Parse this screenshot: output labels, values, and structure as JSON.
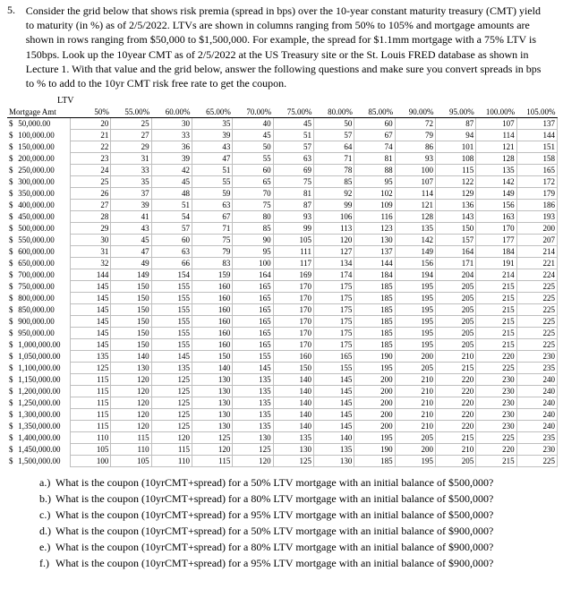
{
  "question_number": "5.",
  "question_text": "Consider the grid below that shows risk premia (spread in bps) over the 10-year constant maturity treasury (CMT) yield to maturity (in %) as of 2/5/2022. LTVs are shown in columns ranging from 50% to 105% and mortgage amounts are shown in rows ranging from $50,000 to $1,500,000. For example, the spread for $1.1mm mortgage with a 75% LTV is 150bps. Look up the 10year CMT as of 2/5/2022 at the US Treasury site or the St. Louis FRED database as shown in Lecture 1. With that value and the grid below, answer the following questions and make sure you convert spreads in bps to % to add to the 10yr CMT risk free rate to get the coupon.",
  "ltv_label": "LTV",
  "table": {
    "mortgage_header": "Mortgage Amt",
    "columns": [
      "50%",
      "55.00%",
      "60.00%",
      "65.00%",
      "70.00%",
      "75.00%",
      "80.00%",
      "85.00%",
      "90.00%",
      "95.00%",
      "100.00%",
      "105.00%"
    ],
    "rows": [
      {
        "amt": "50,000.00",
        "vals": [
          20,
          25,
          30,
          35,
          40,
          45,
          50,
          60,
          72,
          87,
          107,
          137
        ]
      },
      {
        "amt": "100,000.00",
        "vals": [
          21,
          27,
          33,
          39,
          45,
          51,
          57,
          67,
          79,
          94,
          114,
          144
        ]
      },
      {
        "amt": "150,000.00",
        "vals": [
          22,
          29,
          36,
          43,
          50,
          57,
          64,
          74,
          86,
          101,
          121,
          151
        ]
      },
      {
        "amt": "200,000.00",
        "vals": [
          23,
          31,
          39,
          47,
          55,
          63,
          71,
          81,
          93,
          108,
          128,
          158
        ]
      },
      {
        "amt": "250,000.00",
        "vals": [
          24,
          33,
          42,
          51,
          60,
          69,
          78,
          88,
          100,
          115,
          135,
          165
        ]
      },
      {
        "amt": "300,000.00",
        "vals": [
          25,
          35,
          45,
          55,
          65,
          75,
          85,
          95,
          107,
          122,
          142,
          172
        ]
      },
      {
        "amt": "350,000.00",
        "vals": [
          26,
          37,
          48,
          59,
          70,
          81,
          92,
          102,
          114,
          129,
          149,
          179
        ]
      },
      {
        "amt": "400,000.00",
        "vals": [
          27,
          39,
          51,
          63,
          75,
          87,
          99,
          109,
          121,
          136,
          156,
          186
        ]
      },
      {
        "amt": "450,000.00",
        "vals": [
          28,
          41,
          54,
          67,
          80,
          93,
          106,
          116,
          128,
          143,
          163,
          193
        ]
      },
      {
        "amt": "500,000.00",
        "vals": [
          29,
          43,
          57,
          71,
          85,
          99,
          113,
          123,
          135,
          150,
          170,
          200
        ]
      },
      {
        "amt": "550,000.00",
        "vals": [
          30,
          45,
          60,
          75,
          90,
          105,
          120,
          130,
          142,
          157,
          177,
          207
        ]
      },
      {
        "amt": "600,000.00",
        "vals": [
          31,
          47,
          63,
          79,
          95,
          111,
          127,
          137,
          149,
          164,
          184,
          214
        ]
      },
      {
        "amt": "650,000.00",
        "vals": [
          32,
          49,
          66,
          83,
          100,
          117,
          134,
          144,
          156,
          171,
          191,
          221
        ]
      },
      {
        "amt": "700,000.00",
        "vals": [
          144,
          149,
          154,
          159,
          164,
          169,
          174,
          184,
          194,
          204,
          214,
          224
        ]
      },
      {
        "amt": "750,000.00",
        "vals": [
          145,
          150,
          155,
          160,
          165,
          170,
          175,
          185,
          195,
          205,
          215,
          225
        ]
      },
      {
        "amt": "800,000.00",
        "vals": [
          145,
          150,
          155,
          160,
          165,
          170,
          175,
          185,
          195,
          205,
          215,
          225
        ]
      },
      {
        "amt": "850,000.00",
        "vals": [
          145,
          150,
          155,
          160,
          165,
          170,
          175,
          185,
          195,
          205,
          215,
          225
        ]
      },
      {
        "amt": "900,000.00",
        "vals": [
          145,
          150,
          155,
          160,
          165,
          170,
          175,
          185,
          195,
          205,
          215,
          225
        ]
      },
      {
        "amt": "950,000.00",
        "vals": [
          145,
          150,
          155,
          160,
          165,
          170,
          175,
          185,
          195,
          205,
          215,
          225
        ]
      },
      {
        "amt": "1,000,000.00",
        "vals": [
          145,
          150,
          155,
          160,
          165,
          170,
          175,
          185,
          195,
          205,
          215,
          225
        ]
      },
      {
        "amt": "1,050,000.00",
        "vals": [
          135,
          140,
          145,
          150,
          155,
          160,
          165,
          190,
          200,
          210,
          220,
          230
        ]
      },
      {
        "amt": "1,100,000.00",
        "vals": [
          125,
          130,
          135,
          140,
          145,
          150,
          155,
          195,
          205,
          215,
          225,
          235
        ]
      },
      {
        "amt": "1,150,000.00",
        "vals": [
          115,
          120,
          125,
          130,
          135,
          140,
          145,
          200,
          210,
          220,
          230,
          240
        ]
      },
      {
        "amt": "1,200,000.00",
        "vals": [
          115,
          120,
          125,
          130,
          135,
          140,
          145,
          200,
          210,
          220,
          230,
          240
        ]
      },
      {
        "amt": "1,250,000.00",
        "vals": [
          115,
          120,
          125,
          130,
          135,
          140,
          145,
          200,
          210,
          220,
          230,
          240
        ]
      },
      {
        "amt": "1,300,000.00",
        "vals": [
          115,
          120,
          125,
          130,
          135,
          140,
          145,
          200,
          210,
          220,
          230,
          240
        ]
      },
      {
        "amt": "1,350,000.00",
        "vals": [
          115,
          120,
          125,
          130,
          135,
          140,
          145,
          200,
          210,
          220,
          230,
          240
        ]
      },
      {
        "amt": "1,400,000.00",
        "vals": [
          110,
          115,
          120,
          125,
          130,
          135,
          140,
          195,
          205,
          215,
          225,
          235
        ]
      },
      {
        "amt": "1,450,000.00",
        "vals": [
          105,
          110,
          115,
          120,
          125,
          130,
          135,
          190,
          200,
          210,
          220,
          230
        ]
      },
      {
        "amt": "1,500,000.00",
        "vals": [
          100,
          105,
          110,
          115,
          120,
          125,
          130,
          185,
          195,
          205,
          215,
          225
        ]
      }
    ]
  },
  "sub_questions": [
    {
      "lbl": "a.)",
      "text": "What is the coupon (10yrCMT+spread) for a 50% LTV mortgage with an initial balance of $500,000?"
    },
    {
      "lbl": "b.)",
      "text": "What is the coupon (10yrCMT+spread) for a 80% LTV mortgage with an initial balance of $500,000?"
    },
    {
      "lbl": "c.)",
      "text": "What is the coupon (10yrCMT+spread) for a 95% LTV mortgage with an initial balance of $500,000?"
    },
    {
      "lbl": "d.)",
      "text": "What is the coupon (10yrCMT+spread) for a 50% LTV mortgage with an initial balance of $900,000?"
    },
    {
      "lbl": "e.)",
      "text": "What is the coupon (10yrCMT+spread) for a 80% LTV mortgage with an initial balance of $900,000?"
    },
    {
      "lbl": "f.)",
      "text": "What is the coupon (10yrCMT+spread) for a 95% LTV mortgage with an initial balance of $900,000?"
    }
  ],
  "style": {
    "cell_border_color": "#bfbfbf",
    "header_border_color": "#000000",
    "body_font": "Times New Roman"
  }
}
